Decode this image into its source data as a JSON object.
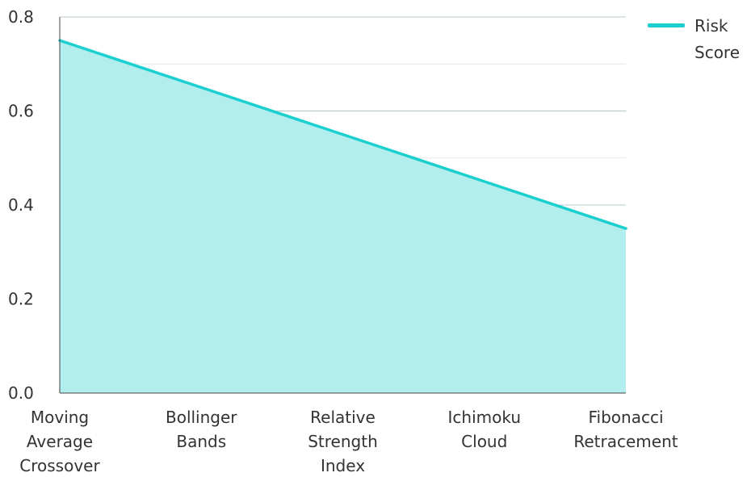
{
  "chart_data": {
    "type": "area",
    "categories": [
      [
        "Moving",
        "Average",
        "Crossover"
      ],
      [
        "Bollinger",
        "Bands"
      ],
      [
        "Relative",
        "Strength",
        "Index"
      ],
      [
        "Ichimoku",
        "Cloud"
      ],
      [
        "Fibonacci",
        "Retracement"
      ]
    ],
    "series": [
      {
        "name": "Risk Score",
        "values": [
          0.75,
          0.65,
          0.55,
          0.45,
          0.35
        ]
      }
    ],
    "ylim": [
      0,
      0.8
    ],
    "y_ticks": [
      "0.0",
      "0.2",
      "0.4",
      "0.6",
      "0.8"
    ],
    "grid": true,
    "legend": {
      "placement": "top-right",
      "lines": [
        "Risk",
        "Score"
      ]
    },
    "colors": {
      "line": "#1ccfcf",
      "fill": "#b2eeee",
      "grid_major": "#b7c9cc",
      "grid_minor": "#e3e8ea",
      "axis": "#444444"
    }
  }
}
